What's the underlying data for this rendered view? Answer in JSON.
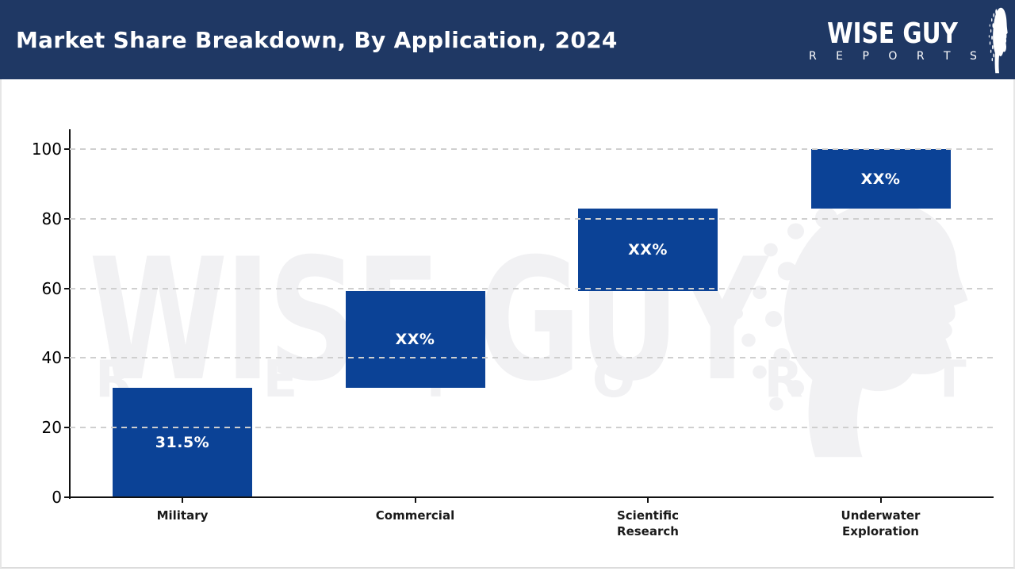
{
  "header": {
    "title": "Market Share Breakdown, By Application, 2024",
    "logo": {
      "name": "WISE GUY",
      "subtitle": "R E P O R T S"
    }
  },
  "watermark": {
    "line1": "WISE GUY",
    "line2": "R E P O R T S"
  },
  "colors": {
    "header_bg": "#1f3864",
    "bar": "#0b4296",
    "bar_label": "#ffffff",
    "grid": "#cfcfcf",
    "axis": "#111111",
    "watermark": "#f1f1f3"
  },
  "chart_data": {
    "type": "bar",
    "subtype": "waterfall-floating-segments",
    "title": "Market Share Breakdown, By Application, 2024",
    "categories": [
      [
        "Military"
      ],
      [
        "Commercial"
      ],
      [
        "Scientific",
        "Research"
      ],
      [
        "Underwater",
        "Exploration"
      ]
    ],
    "series": [
      {
        "name": "Military",
        "start": 0,
        "end": 31.5,
        "label": "31.5%"
      },
      {
        "name": "Commercial",
        "start": 31.5,
        "end": 59.2,
        "label": "XX%"
      },
      {
        "name": "Scientific Research",
        "start": 59.2,
        "end": 82.9,
        "label": "XX%"
      },
      {
        "name": "Underwater Exploration",
        "start": 82.9,
        "end": 100,
        "label": "XX%"
      }
    ],
    "ylim": [
      0,
      100
    ],
    "yticks": [
      0,
      20,
      40,
      60,
      80,
      100
    ],
    "grid": "horizontal-dashed",
    "legend": "none",
    "xlabel": "",
    "ylabel": ""
  }
}
